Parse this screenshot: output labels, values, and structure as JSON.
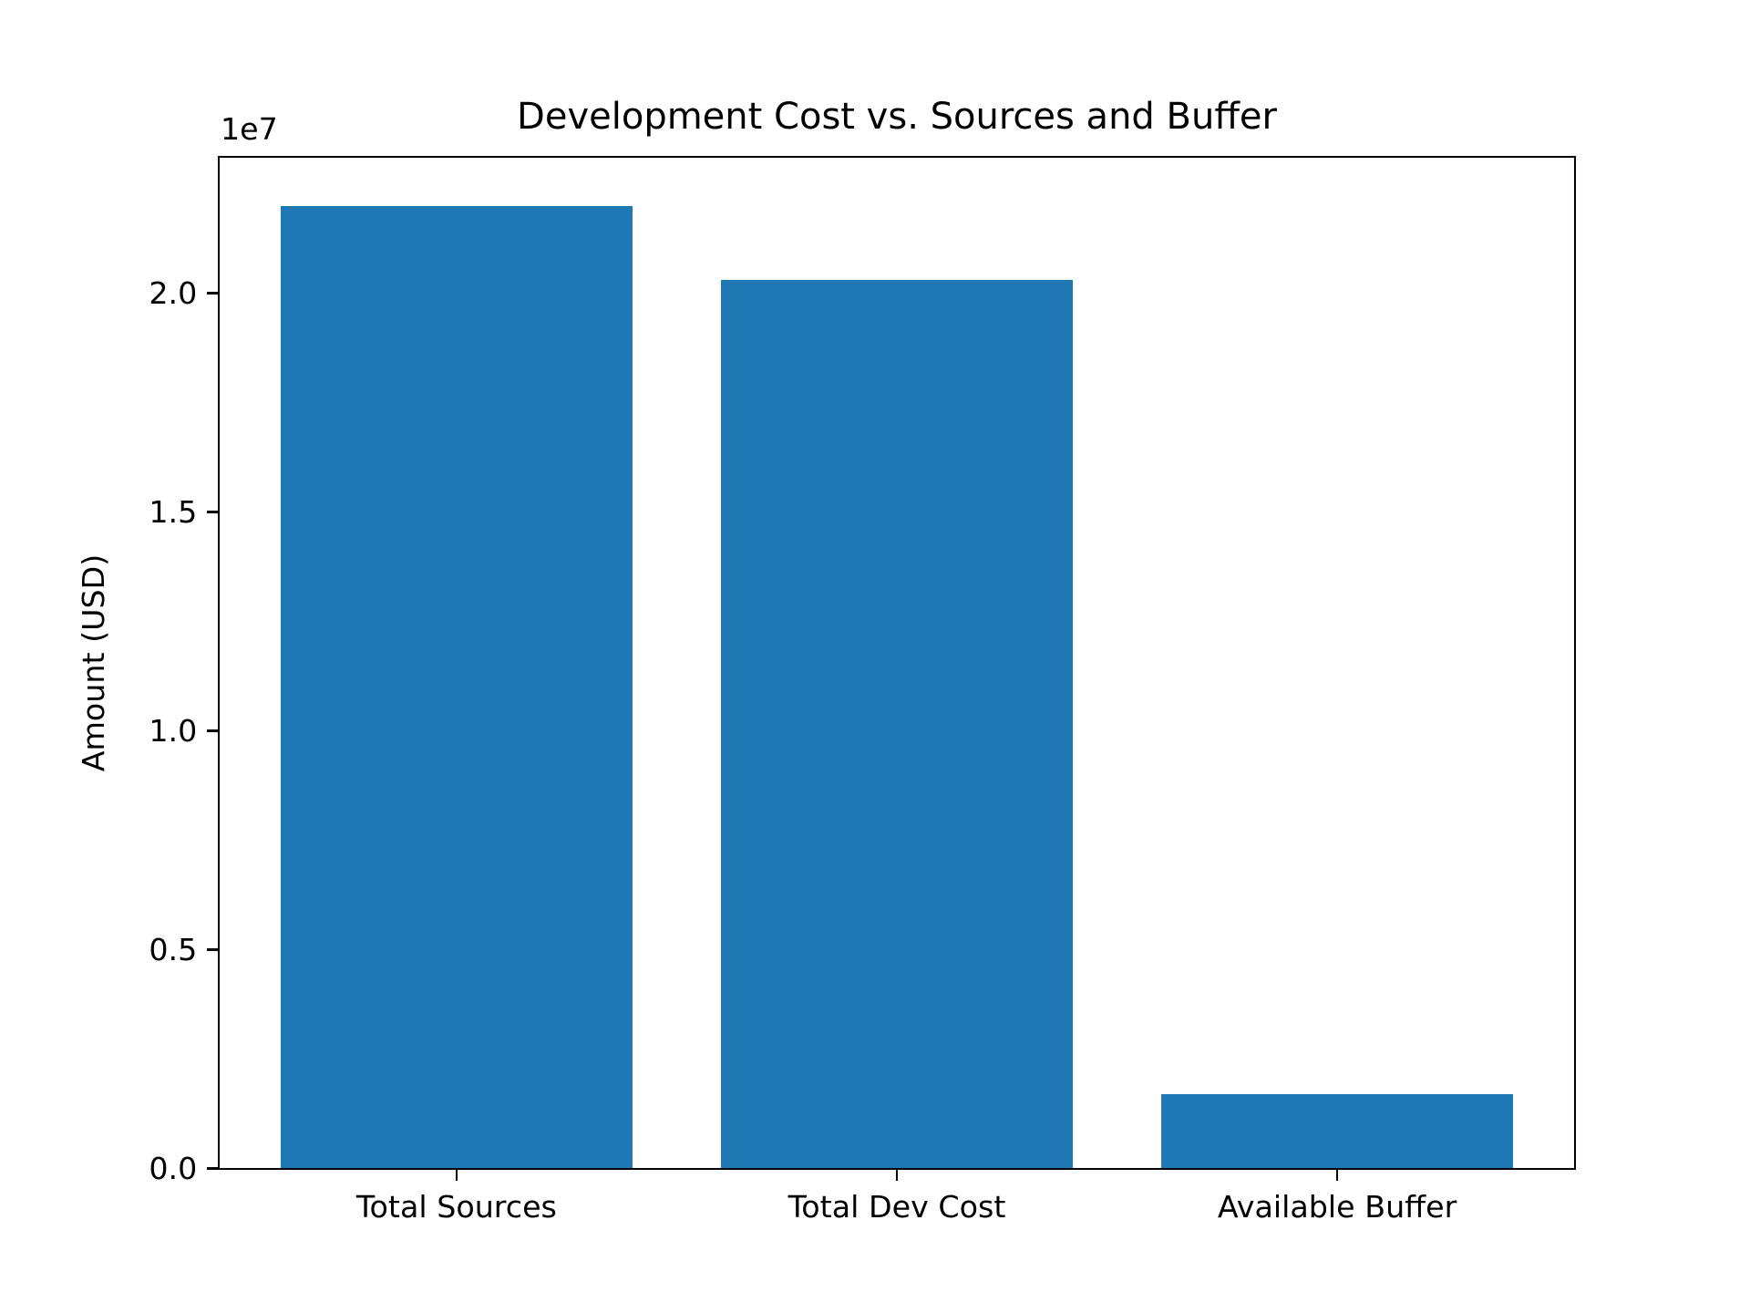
{
  "figure": {
    "background_color": "#ffffff",
    "text_color": "#000000",
    "axis_color": "#000000"
  },
  "chart_data": {
    "type": "bar",
    "title": "Development Cost vs. Sources and Buffer",
    "xlabel": "",
    "ylabel": "Amount (USD)",
    "offset_text": "1e7",
    "categories": [
      "Total Sources",
      "Total Dev Cost",
      "Available Buffer"
    ],
    "values": [
      22000000,
      20300000,
      1700000
    ],
    "bar_color": "#1f77b4",
    "bar_width_fraction": 0.8,
    "xlim": [
      -0.54,
      2.54
    ],
    "ylim": [
      0,
      23100000
    ],
    "yticks": [
      {
        "value": 0,
        "label": "0.0"
      },
      {
        "value": 5000000,
        "label": "0.5"
      },
      {
        "value": 10000000,
        "label": "1.0"
      },
      {
        "value": 15000000,
        "label": "1.5"
      },
      {
        "value": 20000000,
        "label": "2.0"
      }
    ],
    "grid": false,
    "legend": "none"
  }
}
